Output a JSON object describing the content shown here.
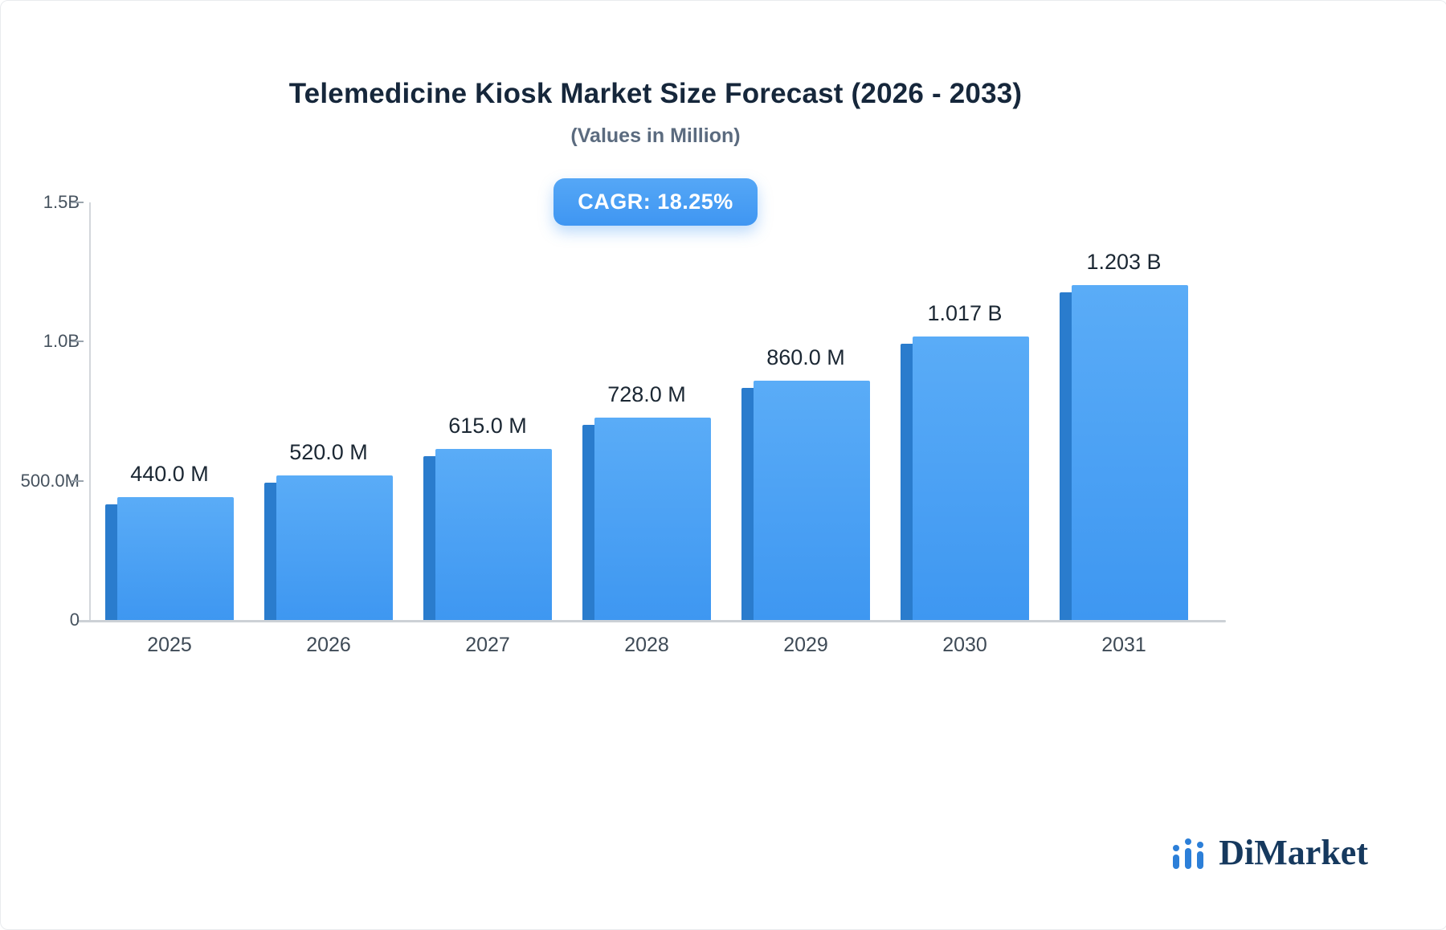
{
  "header": {
    "title": "Telemedicine Kiosk Market Size Forecast (2026 - 2033)",
    "subtitle": "(Values in Million)",
    "badge": "CAGR: 18.25%"
  },
  "logo": {
    "text": "DiMarket"
  },
  "colors": {
    "bar_face_top": "#5aacf7",
    "bar_face_bottom": "#3e97f1",
    "bar_edge": "#2a7ccd",
    "badge_bg": "#459df3",
    "title_text": "#16273b",
    "subtitle_text": "#5b6b7f",
    "logo_text": "#16395e",
    "logo_icon": "#2c7fd8",
    "axis_line": "#d3d7dc"
  },
  "chart_data": {
    "type": "bar",
    "title": "Telemedicine Kiosk Market Size Forecast (2026 - 2033)",
    "subtitle": "(Values in Million)",
    "cagr": "18.25%",
    "categories": [
      "2025",
      "2026",
      "2027",
      "2028",
      "2029",
      "2030",
      "2031"
    ],
    "values": [
      440,
      520,
      615,
      728,
      860,
      1017,
      1203
    ],
    "value_labels": [
      "440.0 M",
      "520.0 M",
      "615.0 M",
      "728.0 M",
      "860.0 M",
      "1.017 B",
      "1.203 B"
    ],
    "unit": "Million USD",
    "xlabel": "",
    "ylabel": "",
    "ylim": [
      0,
      1500
    ],
    "yticks": [
      {
        "value": 0,
        "label": "0"
      },
      {
        "value": 500,
        "label": "500.0M"
      },
      {
        "value": 1000,
        "label": "1.0B"
      },
      {
        "value": 1500,
        "label": "1.5B"
      }
    ],
    "grid": false,
    "legend": false
  }
}
